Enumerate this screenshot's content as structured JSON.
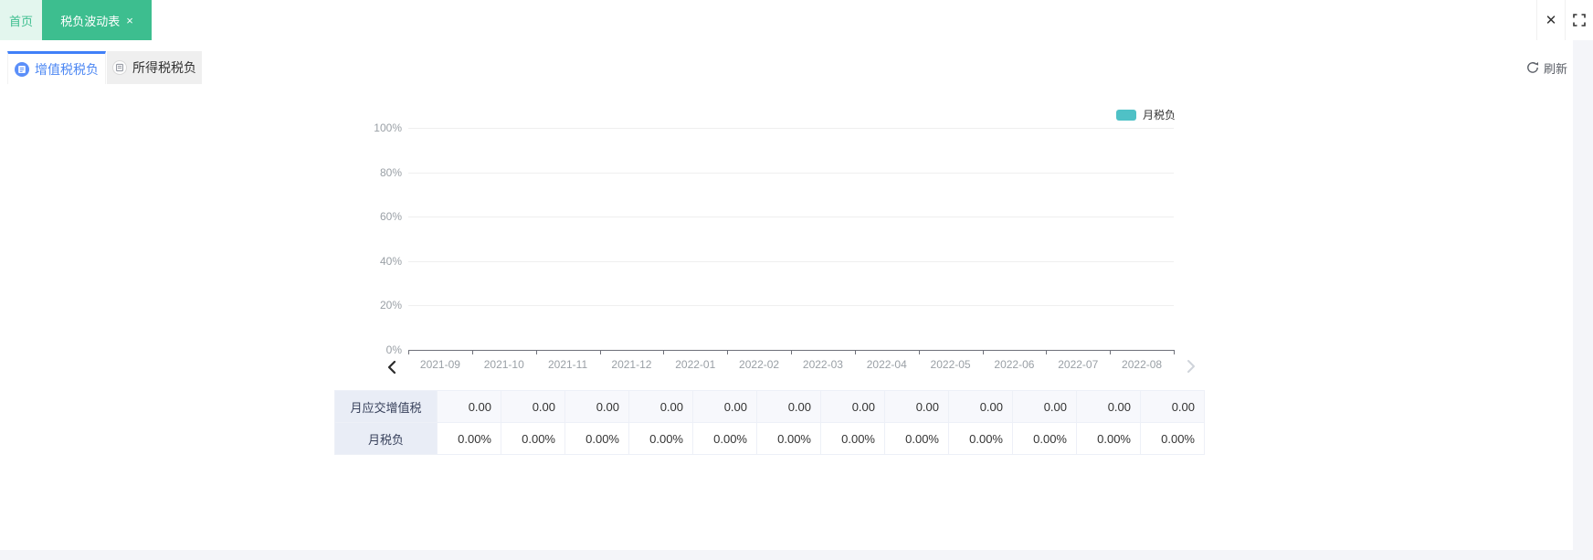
{
  "topbar": {
    "tabs": [
      {
        "label": "首页",
        "active": false
      },
      {
        "label": "税负波动表",
        "active": true,
        "close": "×"
      }
    ],
    "window_controls": {
      "close": "✕",
      "fullscreen": "expand"
    }
  },
  "panel_tabs": [
    {
      "label": "增值税税负",
      "active": true
    },
    {
      "label": "所得税税负",
      "active": false
    }
  ],
  "toolbar": {
    "refresh_label": "刷新"
  },
  "chart_data": {
    "type": "bar",
    "title": "",
    "categories": [
      "2021-09",
      "2021-10",
      "2021-11",
      "2021-12",
      "2022-01",
      "2022-02",
      "2022-03",
      "2022-04",
      "2022-05",
      "2022-06",
      "2022-07",
      "2022-08"
    ],
    "series": [
      {
        "name": "月税负",
        "color": "#4FC1C6",
        "values": [
          0,
          0,
          0,
          0,
          0,
          0,
          0,
          0,
          0,
          0,
          0,
          0
        ]
      }
    ],
    "xlabel": "",
    "ylabel": "",
    "ylim": [
      0,
      100
    ],
    "yticks": [
      "0%",
      "20%",
      "40%",
      "60%",
      "80%",
      "100%"
    ],
    "ytick_values": [
      0,
      20,
      40,
      60,
      80,
      100
    ],
    "grid": true,
    "legend_position": "top-right",
    "scrollable_x": true
  },
  "table": {
    "rows": [
      {
        "label": "月应交增值税",
        "values": [
          "0.00",
          "0.00",
          "0.00",
          "0.00",
          "0.00",
          "0.00",
          "0.00",
          "0.00",
          "0.00",
          "0.00",
          "0.00",
          "0.00"
        ]
      },
      {
        "label": "月税负",
        "values": [
          "0.00%",
          "0.00%",
          "0.00%",
          "0.00%",
          "0.00%",
          "0.00%",
          "0.00%",
          "0.00%",
          "0.00%",
          "0.00%",
          "0.00%",
          "0.00%"
        ]
      }
    ]
  },
  "colors": {
    "accent_green": "#3DBE8F",
    "accent_green_light": "#E3F6EE",
    "accent_blue": "#4C87F3",
    "tab_icon_blue": "#5B8FF9",
    "legend_teal": "#4FC1C6",
    "page_bg": "#F4F5F9",
    "axis_line": "#6E7079",
    "axis_label": "#9AA0A6"
  }
}
